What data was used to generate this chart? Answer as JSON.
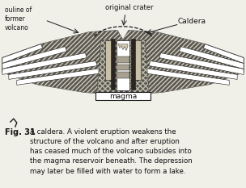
{
  "bg_color": "#f0efe8",
  "caption_bold": "Fig. 31",
  "caption_text": "A caldera. A violent eruption weakens the\nstructure of the volcano and after eruption\nhas ceased much of the volcano subsides into\nthe magma reservoir beneath. The depression\nmay later be filled with water to form a lake.",
  "label_outline": "ouline of\nformer\nvolcano",
  "label_crater": "original crater",
  "label_caldera": "Caldera",
  "label_magma": "magma",
  "line_color": "#1a1a1a",
  "text_color": "#111111",
  "dark_fill": "#5a5550",
  "mid_fill": "#9a9080",
  "light_fill": "#d8d0b8",
  "white_fill": "#ffffff",
  "figsize": [
    3.04,
    2.33
  ],
  "dpi": 100
}
